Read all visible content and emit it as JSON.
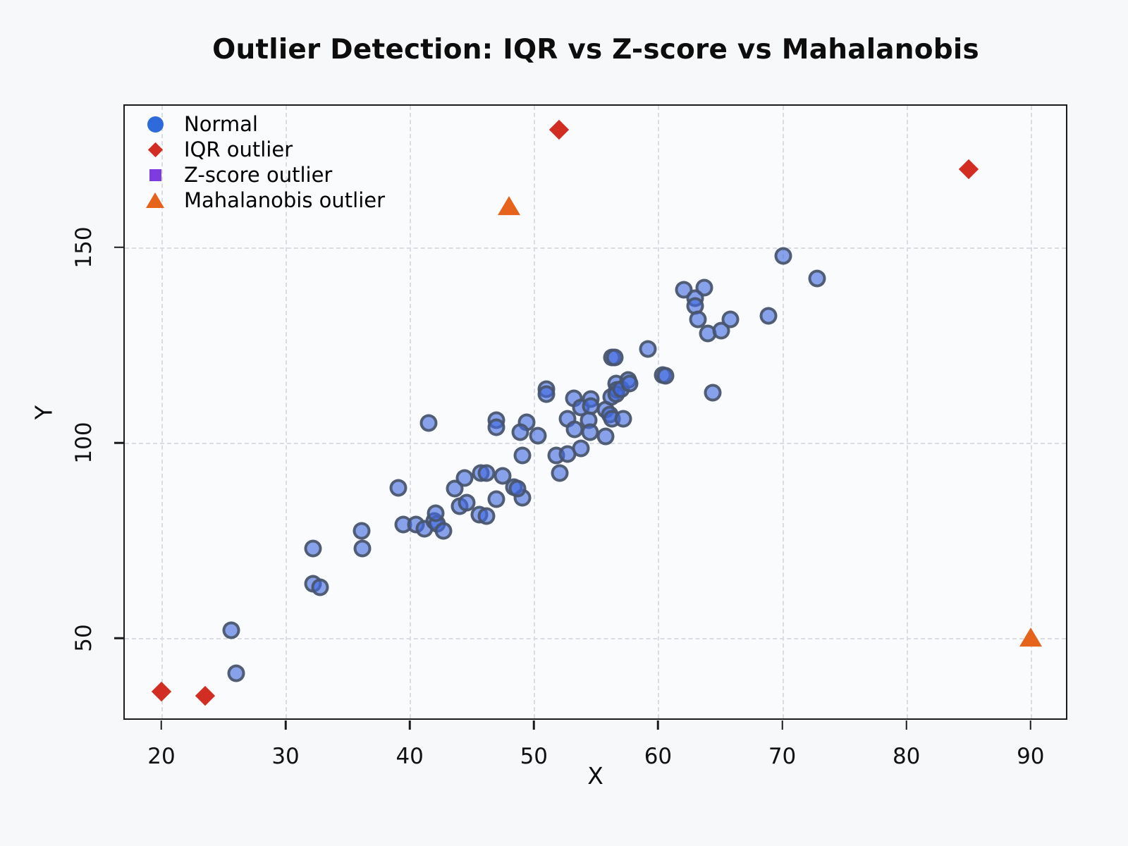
{
  "title": "Outlier Detection: IQR vs Z-score vs Mahalanobis",
  "axes": {
    "x_label": "X",
    "y_label": "Y",
    "x_ticks": [
      20,
      30,
      40,
      50,
      60,
      70,
      80,
      90
    ],
    "y_ticks": [
      50,
      100,
      150
    ],
    "x_range": [
      17.05,
      92.85
    ],
    "y_range": [
      29.5,
      186.2
    ],
    "grid": true
  },
  "legend": {
    "position": "upper-left",
    "frame": false,
    "items": [
      {
        "label": "Normal",
        "marker": "circle",
        "color": "#2e6ada"
      },
      {
        "label": "IQR outlier",
        "marker": "diamond",
        "color": "#d22d23"
      },
      {
        "label": "Z-score outlier",
        "marker": "square",
        "color": "#7e3be0"
      },
      {
        "label": "Mahalanobis outlier",
        "marker": "triangle",
        "color": "#e5631b"
      }
    ]
  },
  "chart_data": {
    "type": "scatter",
    "title": "Outlier Detection: IQR vs Z-score vs Mahalanobis",
    "xlabel": "X",
    "ylabel": "Y",
    "xlim": [
      17.05,
      92.85
    ],
    "ylim": [
      29.5,
      186.2
    ],
    "grid": true,
    "legend_position": "upper-left",
    "series": [
      {
        "name": "Normal",
        "marker": "circle",
        "fill": "rgba(65,105,225,0.62)",
        "edge": "rgba(73,83,100,0.88)",
        "points": [
          [
            25.6,
            52
          ],
          [
            26,
            41
          ],
          [
            32.2,
            64
          ],
          [
            32.8,
            63
          ],
          [
            32.2,
            73
          ],
          [
            36.2,
            73
          ],
          [
            36.1,
            77.5
          ],
          [
            39.1,
            88.5
          ],
          [
            39.5,
            79
          ],
          [
            40.5,
            79
          ],
          [
            41.2,
            78
          ],
          [
            41.5,
            105
          ],
          [
            42,
            80
          ],
          [
            42.2,
            79.3
          ],
          [
            42.1,
            82
          ],
          [
            42.7,
            77.5
          ],
          [
            43.6,
            88.3
          ],
          [
            44,
            83.8
          ],
          [
            44.6,
            84.7
          ],
          [
            44.4,
            91
          ],
          [
            45.7,
            92.3
          ],
          [
            46.2,
            92.3
          ],
          [
            45.6,
            81.7
          ],
          [
            46.2,
            81.3
          ],
          [
            47.5,
            91.5
          ],
          [
            47,
            85.5
          ],
          [
            49.1,
            86
          ],
          [
            48.4,
            88.7
          ],
          [
            48.7,
            88.2
          ],
          [
            49.1,
            96.8
          ],
          [
            49.4,
            105.2
          ],
          [
            48.9,
            102.7
          ],
          [
            47,
            105.8
          ],
          [
            47,
            104
          ],
          [
            50.3,
            101.8
          ],
          [
            51,
            113.8
          ],
          [
            51,
            112.4
          ],
          [
            51.8,
            96.8
          ],
          [
            52.7,
            97.1
          ],
          [
            52.1,
            92.3
          ],
          [
            53.2,
            111.4
          ],
          [
            53.8,
            109
          ],
          [
            52.7,
            106.1
          ],
          [
            53.3,
            103.4
          ],
          [
            53.8,
            98.6
          ],
          [
            54.6,
            111.2
          ],
          [
            54.6,
            109.4
          ],
          [
            54.4,
            105.8
          ],
          [
            54.5,
            102.7
          ],
          [
            55.8,
            108.5
          ],
          [
            56.1,
            107.2
          ],
          [
            55.8,
            101.6
          ],
          [
            56.3,
            106.1
          ],
          [
            57.2,
            106.1
          ],
          [
            56.2,
            111.7
          ],
          [
            56.6,
            115.1
          ],
          [
            56.7,
            113.5
          ],
          [
            56.6,
            112.4
          ],
          [
            57,
            113.8
          ],
          [
            57.6,
            116
          ],
          [
            57.7,
            115.1
          ],
          [
            56.3,
            121.8
          ],
          [
            56.5,
            121.8
          ],
          [
            59.2,
            124
          ],
          [
            60.4,
            117.4
          ],
          [
            60.6,
            117.1
          ],
          [
            62.1,
            139.2
          ],
          [
            63.7,
            139.6
          ],
          [
            63,
            136.9
          ],
          [
            63,
            134.9
          ],
          [
            63.2,
            131.5
          ],
          [
            64,
            127.9
          ],
          [
            65.1,
            128.6
          ],
          [
            65.8,
            131.5
          ],
          [
            68.9,
            132.5
          ],
          [
            70.1,
            147.8
          ],
          [
            72.8,
            142.1
          ],
          [
            64.4,
            112.8
          ]
        ]
      },
      {
        "name": "Z-score outlier",
        "marker": "square",
        "color": "#7e3be0",
        "points": [],
        "note": "legend entry visible; no squares visible in plot (covered by IQR diamonds)"
      },
      {
        "name": "Mahalanobis outlier",
        "marker": "triangle",
        "color": "#e5631b",
        "points": [
          [
            48,
            160.5
          ],
          [
            90,
            50
          ]
        ]
      },
      {
        "name": "IQR outlier",
        "marker": "diamond",
        "color": "#d22d23",
        "points": [
          [
            20,
            36.3
          ],
          [
            23.5,
            35.3
          ],
          [
            52,
            180
          ],
          [
            85,
            170
          ]
        ]
      }
    ]
  }
}
